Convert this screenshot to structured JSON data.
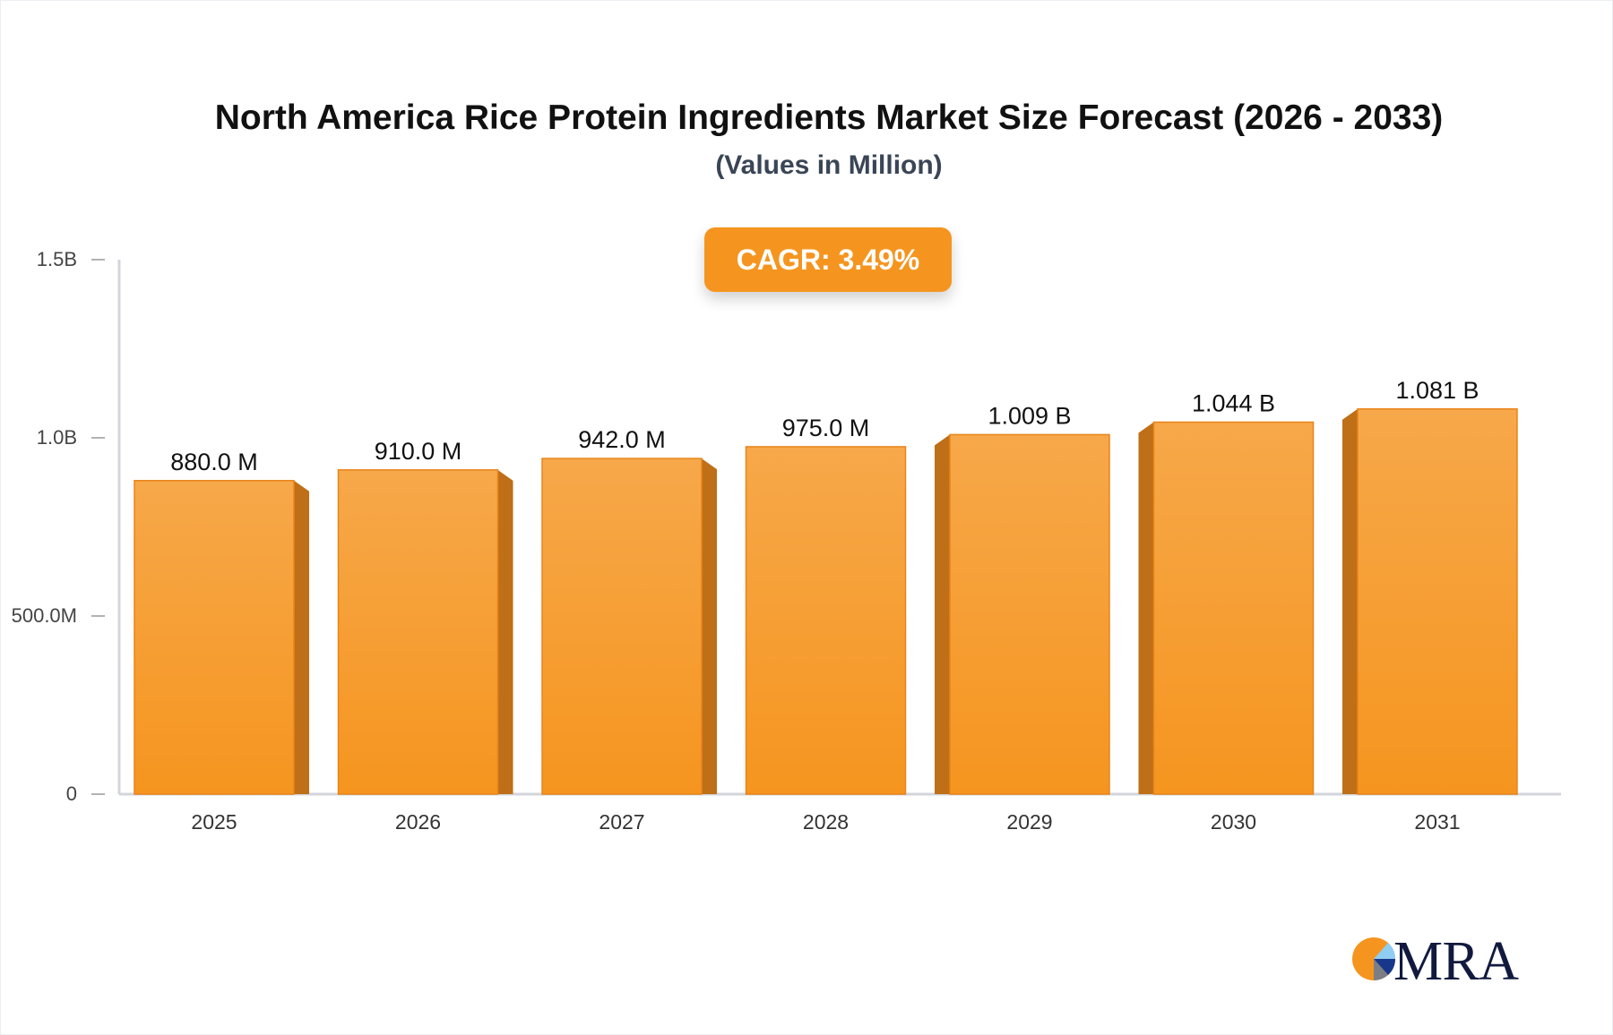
{
  "chart_data": {
    "type": "bar",
    "title": "North America Rice Protein Ingredients Market Size Forecast (2026 - 2033)",
    "subtitle": "(Values in Million)",
    "categories": [
      "2025",
      "2026",
      "2027",
      "2028",
      "2029",
      "2030",
      "2031"
    ],
    "values": [
      880.0,
      910.0,
      942.0,
      975.0,
      1009,
      1044,
      1081
    ],
    "data_labels": [
      "880.0 M",
      "910.0 M",
      "942.0 M",
      "975.0 M",
      "1.009 B",
      "1.044 B",
      "1.081 B"
    ],
    "yticks": [
      {
        "value": 0,
        "label": "0"
      },
      {
        "value": 500,
        "label": "500.0M"
      },
      {
        "value": 1000,
        "label": "1.0B"
      },
      {
        "value": 1500,
        "label": "1.5B"
      }
    ],
    "ylim": [
      0,
      1500
    ],
    "unit": "Million",
    "grid": false,
    "colors": {
      "bar_top": "#f7a84a",
      "bar_bottom": "#f5951f",
      "bar_side": "#bf6f17",
      "axis": "#d3d5dc"
    }
  },
  "badge": {
    "cagr": "CAGR: 3.49%"
  },
  "logo": {
    "text": "MRA",
    "colors": [
      "#f5951f",
      "#8fcdf2",
      "#17388a",
      "#7d7d85",
      "#111a3e"
    ]
  }
}
